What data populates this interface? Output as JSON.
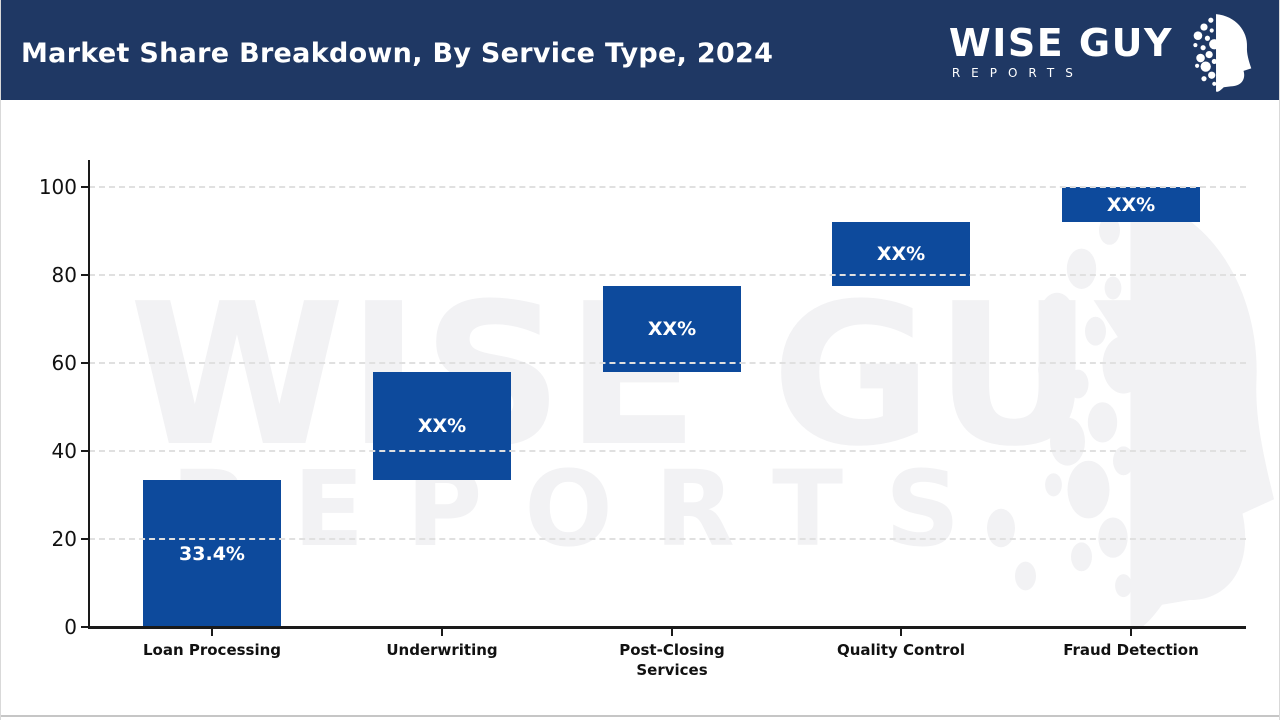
{
  "header": {
    "title": "Market Share Breakdown, By Service Type, 2024",
    "logo": {
      "line1": "WISE GUY",
      "line2": "REPORTS"
    }
  },
  "watermark": {
    "line1": "WISE GUY",
    "line2": "REPORTS"
  },
  "chart_data": {
    "type": "bar",
    "subtype": "waterfall",
    "title": "Market Share Breakdown, By Service Type, 2024",
    "xlabel": "",
    "ylabel": "",
    "grid": "horizontal-dashed",
    "legend": "none",
    "ylim": [
      0,
      107
    ],
    "y_ticks": [
      0,
      20,
      40,
      60,
      80,
      100
    ],
    "categories": [
      "Loan Processing",
      "Underwriting",
      "Post-Closing Services",
      "Quality Control",
      "Fraud Detection"
    ],
    "segments": [
      {
        "category": "Loan Processing",
        "start": 0,
        "end": 33.4,
        "value": 33.4,
        "label": "33.4%"
      },
      {
        "category": "Underwriting",
        "start": 33.4,
        "end": 58.0,
        "value": 24.6,
        "label": "XX%"
      },
      {
        "category": "Post-Closing Services",
        "start": 58.0,
        "end": 77.5,
        "value": 19.5,
        "label": "XX%"
      },
      {
        "category": "Quality Control",
        "start": 77.5,
        "end": 92.0,
        "value": 14.5,
        "label": "XX%"
      },
      {
        "category": "Fraud Detection",
        "start": 92.0,
        "end": 100.0,
        "value": 8.0,
        "label": "XX%"
      }
    ],
    "bar_color": "#0d4a9c",
    "bar_label_color": "#ffffff"
  },
  "colors": {
    "header_bg": "#1f3864",
    "bar": "#0d4a9c",
    "grid": "#e0e0e0",
    "axis": "#1a1a1a",
    "watermark": "#f2f2f4"
  }
}
